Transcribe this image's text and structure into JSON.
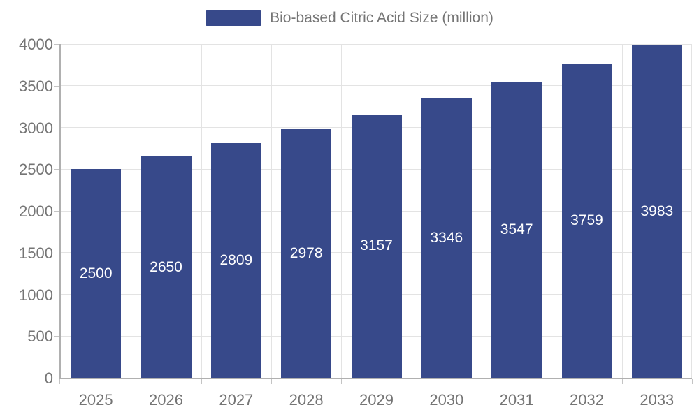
{
  "chart_data": {
    "type": "bar",
    "title": "",
    "legend_label": "Bio-based Citric Acid Size (million)",
    "categories": [
      "2025",
      "2026",
      "2027",
      "2028",
      "2029",
      "2030",
      "2031",
      "2032",
      "2033"
    ],
    "values": [
      2500,
      2650,
      2809,
      2978,
      3157,
      3346,
      3547,
      3759,
      3983
    ],
    "value_labels": [
      "2500",
      "2650",
      "2809",
      "2978",
      "3157",
      "3346",
      "3547",
      "3759",
      "3983"
    ],
    "xlabel": "",
    "ylabel": "",
    "ylim": [
      0,
      4000
    ],
    "yticks": [
      0,
      500,
      1000,
      1500,
      2000,
      2500,
      3000,
      3500,
      4000
    ],
    "grid": true,
    "legend_position": "top-center",
    "colors": {
      "bar": "#37498a",
      "text": "#757575",
      "grid": "#e3e3e3",
      "axis": "#b0b0b0",
      "tick": "#c4c4c4",
      "value_label": "#ffffff",
      "background": "#ffffff"
    }
  }
}
